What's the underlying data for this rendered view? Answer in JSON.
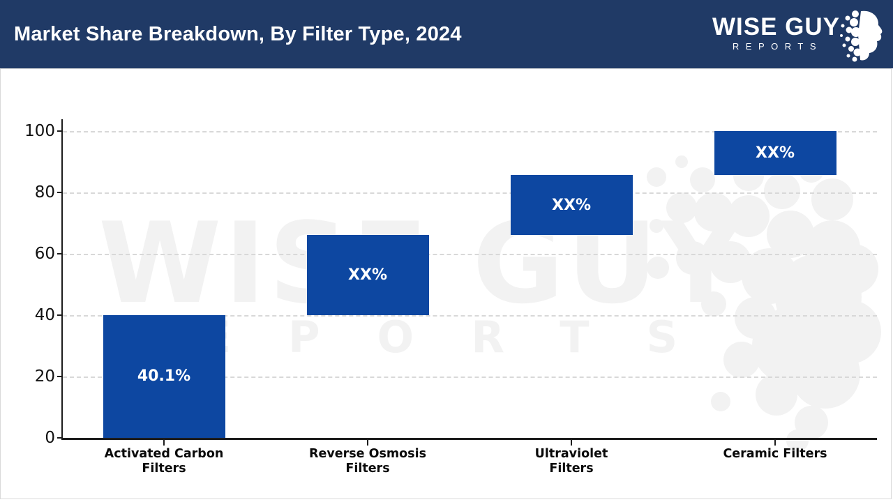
{
  "header": {
    "title": "Market Share Breakdown, By Filter Type, 2024",
    "bg_color": "#203a66",
    "logo": {
      "line1": "WISE GUY",
      "line2": "REPORTS"
    }
  },
  "watermark": {
    "line1": "WISE GUY",
    "line2": "REPORTS"
  },
  "chart_data": {
    "type": "bar",
    "subtype": "floating-segment-progression",
    "title": "Market Share Breakdown, By Filter Type, 2024",
    "categories": [
      [
        "Activated Carbon",
        "Filters"
      ],
      [
        "Reverse Osmosis",
        "Filters"
      ],
      [
        "Ultraviolet",
        "Filters"
      ],
      [
        "Ceramic Filters"
      ]
    ],
    "segments": [
      {
        "start": 0,
        "end": 40.1,
        "label": "40.1%"
      },
      {
        "start": 40.1,
        "end": 66.1,
        "label": "XX%"
      },
      {
        "start": 66.1,
        "end": 85.7,
        "label": "XX%"
      },
      {
        "start": 85.7,
        "end": 100,
        "label": "XX%"
      }
    ],
    "yticks": [
      0,
      20,
      40,
      60,
      80,
      100
    ],
    "ylim": [
      0,
      104
    ],
    "xlabel": "",
    "ylabel": "",
    "bar_color": "#0d47a1",
    "grid": "horizontal-dashed",
    "legend": "none"
  }
}
